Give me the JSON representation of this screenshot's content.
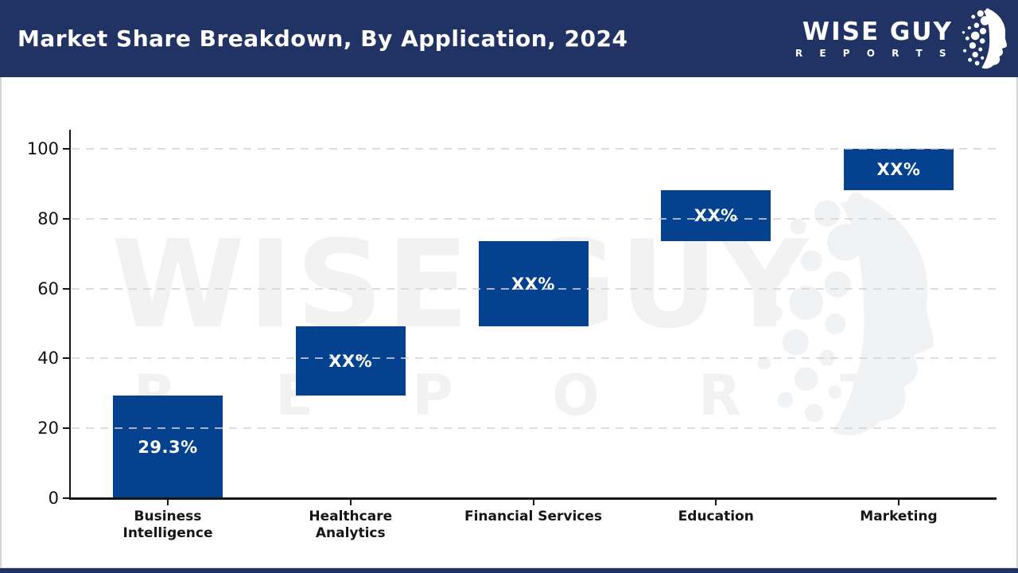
{
  "header": {
    "title": "Market Share Breakdown, By Application, 2024",
    "logo": {
      "line1": "WISE GUY",
      "line2": "R E P O R T S"
    }
  },
  "watermark": {
    "line1": "WISE GUY",
    "line2": "R E P O R T S"
  },
  "colors": {
    "header_bg": "#203364",
    "footer_bg": "#203364",
    "bar_blue": "#04418f",
    "grid_gray": "#d4d4d4",
    "title_text": "#ffffff"
  },
  "chart_data": {
    "type": "bar",
    "subtype": "waterfall",
    "title": "Market Share Breakdown, By Application, 2024",
    "categories": [
      "Business Intelligence",
      "Healthcare Analytics",
      "Financial Services",
      "Education",
      "Marketing"
    ],
    "category_lines": [
      [
        "Business",
        "Intelligence"
      ],
      [
        "Healthcare",
        "Analytics"
      ],
      [
        "Financial Services"
      ],
      [
        "Education"
      ],
      [
        "Marketing"
      ]
    ],
    "segments": [
      {
        "category": "Business Intelligence",
        "start": 0,
        "end": 29.3,
        "label": "29.3%"
      },
      {
        "category": "Healthcare Analytics",
        "start": 29.3,
        "end": 49.2,
        "label": "XX%"
      },
      {
        "category": "Financial Services",
        "start": 49.2,
        "end": 73.5,
        "label": "XX%"
      },
      {
        "category": "Education",
        "start": 73.5,
        "end": 88.2,
        "label": "XX%"
      },
      {
        "category": "Marketing",
        "start": 88.2,
        "end": 100,
        "label": "XX%"
      }
    ],
    "yticks": [
      0,
      20,
      40,
      60,
      80,
      100
    ],
    "ylim": [
      0,
      105
    ],
    "xlabel": "",
    "ylabel": "",
    "grid": "horizontal-dashed",
    "legend": "none",
    "bar_color": "#04418f"
  }
}
